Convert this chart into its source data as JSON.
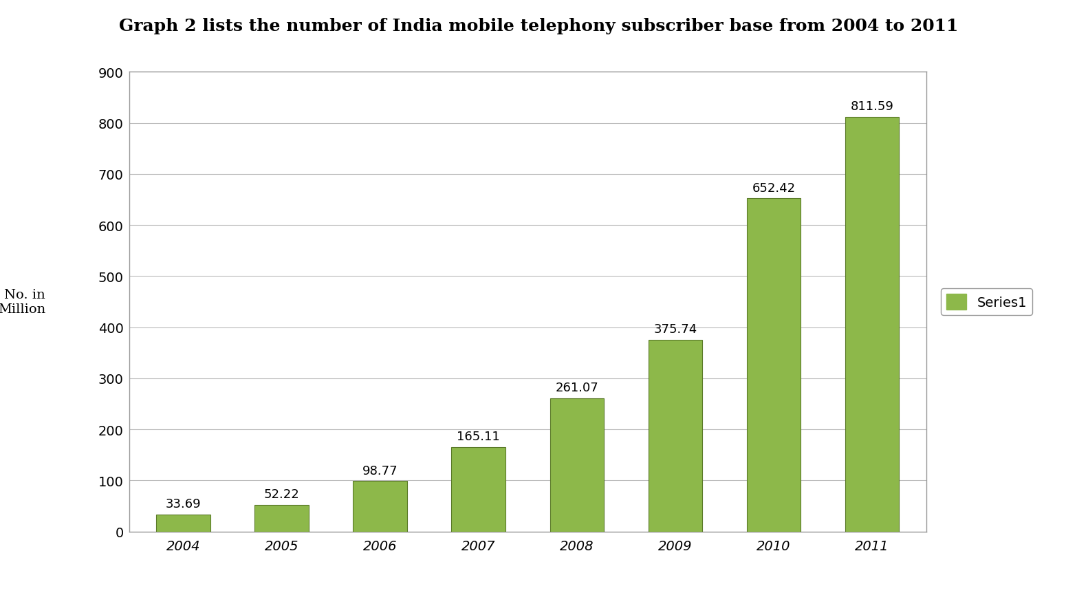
{
  "categories": [
    "2004",
    "2005",
    "2006",
    "2007",
    "2008",
    "2009",
    "2010",
    "2011"
  ],
  "values": [
    33.69,
    52.22,
    98.77,
    165.11,
    261.07,
    375.74,
    652.42,
    811.59
  ],
  "bar_color": "#8DB84A",
  "bar_edgecolor": "#5A7A28",
  "title": "Graph 2 lists the number of India mobile telephony subscriber base from 2004 to 2011",
  "ylabel": "No. in\nMillion",
  "ylim": [
    0,
    900
  ],
  "yticks": [
    0,
    100,
    200,
    300,
    400,
    500,
    600,
    700,
    800,
    900
  ],
  "legend_label": "Series1",
  "title_fontsize": 18,
  "axis_label_fontsize": 14,
  "tick_fontsize": 14,
  "annotation_fontsize": 13,
  "background_color": "#FFFFFF",
  "plot_background": "#FFFFFF",
  "grid_color": "#BBBBBB"
}
